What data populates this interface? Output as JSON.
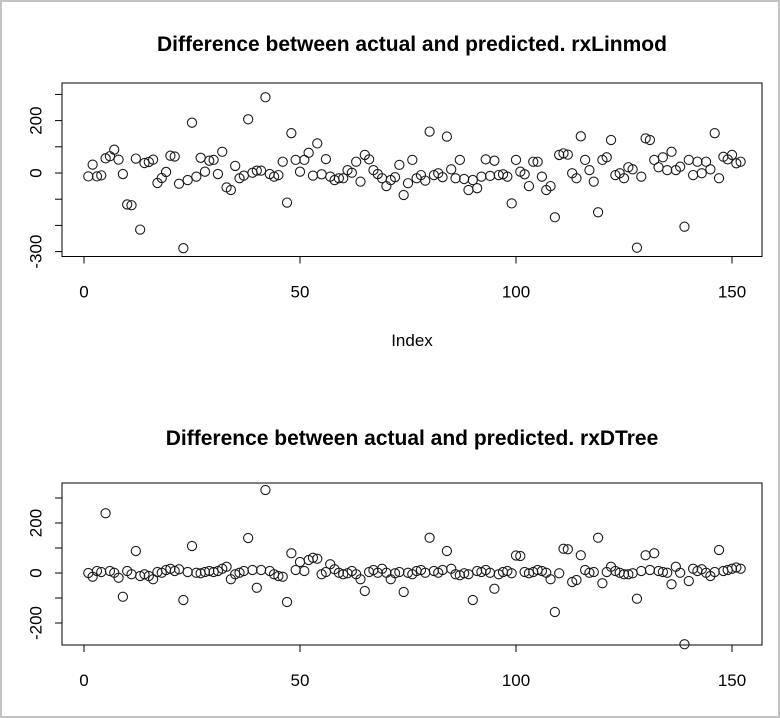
{
  "window": {
    "background": "#ffffff",
    "border_color": "#c3c3c3",
    "point_color": "#1c1c1c",
    "axis_color": "#000000"
  },
  "chart_data": [
    {
      "type": "scatter",
      "title": "Difference between actual and predicted. rxLinmod",
      "xlabel": "Index",
      "ylabel": "",
      "legend": "none",
      "grid": false,
      "marker": "open-circle",
      "xlim": [
        -5,
        157
      ],
      "ylim": [
        -319,
        343
      ],
      "x": {
        "start": 1,
        "step": 1
      },
      "x_ticks": [
        {
          "v": 0,
          "label": "0"
        },
        {
          "v": 50,
          "label": "50"
        },
        {
          "v": 100,
          "label": "100"
        },
        {
          "v": 150,
          "label": "150"
        }
      ],
      "y_ticks": [
        {
          "v": 300,
          "label": ""
        },
        {
          "v": 200,
          "label": "200"
        },
        {
          "v": 100,
          "label": ""
        },
        {
          "v": 0,
          "label": "0"
        },
        {
          "v": -100,
          "label": ""
        },
        {
          "v": -200,
          "label": ""
        },
        {
          "v": -300,
          "label": "-300"
        }
      ],
      "values": [
        -13,
        32,
        -13,
        -9,
        56,
        64,
        89,
        51,
        -4,
        -120,
        -123,
        55,
        -216,
        38,
        42,
        51,
        -38,
        -19,
        4,
        66,
        63,
        -41,
        -287,
        -27,
        192,
        -14,
        58,
        5,
        47,
        50,
        -4,
        81,
        -55,
        -65,
        27,
        -20,
        -10,
        205,
        1,
        9,
        9,
        289,
        -4,
        -14,
        -8,
        43,
        -113,
        152,
        50,
        5,
        50,
        77,
        -10,
        113,
        -5,
        53,
        -14,
        -27,
        -20,
        -20,
        11,
        1,
        43,
        -33,
        69,
        52,
        11,
        -4,
        -20,
        -50,
        -27,
        -16,
        31,
        -84,
        -39,
        50,
        -20,
        -8,
        -29,
        158,
        -8,
        -1,
        -16,
        139,
        14,
        -20,
        50,
        -23,
        -65,
        -27,
        -58,
        -14,
        52,
        -11,
        47,
        -8,
        -5,
        -14,
        -116,
        50,
        5,
        -5,
        -50,
        43,
        43,
        -14,
        -65,
        -50,
        -169,
        69,
        75,
        70,
        -1,
        -20,
        140,
        50,
        11,
        -33,
        -150,
        50,
        60,
        126,
        -8,
        -1,
        -20,
        22,
        14,
        -285,
        -14,
        132,
        126,
        50,
        22,
        60,
        11,
        81,
        11,
        24,
        -205,
        50,
        -8,
        43,
        -1,
        43,
        14,
        152,
        -20,
        62,
        52,
        69,
        37,
        43
      ]
    },
    {
      "type": "scatter",
      "title": "Difference between actual and predicted. rxDTree",
      "xlabel": "",
      "ylabel": "",
      "legend": "none",
      "grid": false,
      "marker": "open-circle",
      "xlim": [
        -5,
        157
      ],
      "ylim": [
        -288,
        360
      ],
      "x": {
        "start": 1,
        "step": 1
      },
      "x_ticks": [
        {
          "v": 0,
          "label": "0"
        },
        {
          "v": 50,
          "label": "50"
        },
        {
          "v": 100,
          "label": "100"
        },
        {
          "v": 150,
          "label": "150"
        }
      ],
      "y_ticks": [
        {
          "v": 300,
          "label": ""
        },
        {
          "v": 200,
          "label": "200"
        },
        {
          "v": 100,
          "label": ""
        },
        {
          "v": 0,
          "label": "0"
        },
        {
          "v": -100,
          "label": ""
        },
        {
          "v": -200,
          "label": "-200"
        }
      ],
      "values": [
        0,
        -15,
        8,
        4,
        239,
        8,
        1,
        -19,
        -95,
        8,
        -5,
        88,
        -12,
        -5,
        -12,
        -25,
        4,
        1,
        12,
        17,
        8,
        15,
        -108,
        4,
        108,
        1,
        -1,
        4,
        8,
        4,
        8,
        17,
        25,
        -25,
        -5,
        1,
        8,
        140,
        12,
        -59,
        12,
        332,
        8,
        -5,
        -12,
        -15,
        -116,
        79,
        12,
        44,
        8,
        52,
        61,
        57,
        -5,
        4,
        35,
        15,
        1,
        -5,
        -1,
        8,
        -5,
        -25,
        -72,
        4,
        12,
        1,
        17,
        1,
        -25,
        -1,
        4,
        -76,
        1,
        -5,
        8,
        12,
        1,
        141,
        8,
        1,
        12,
        88,
        17,
        -5,
        -9,
        -1,
        -5,
        -108,
        8,
        4,
        12,
        1,
        -63,
        -5,
        4,
        8,
        -1,
        70,
        68,
        4,
        -1,
        4,
        12,
        8,
        1,
        -25,
        -156,
        -1,
        97,
        95,
        -36,
        -28,
        71,
        12,
        1,
        4,
        141,
        -41,
        4,
        25,
        8,
        1,
        -5,
        -5,
        -1,
        -103,
        8,
        71,
        12,
        79,
        8,
        4,
        1,
        -45,
        25,
        1,
        -285,
        -32,
        17,
        8,
        15,
        1,
        -12,
        4,
        92,
        8,
        12,
        17,
        22,
        17
      ]
    }
  ]
}
